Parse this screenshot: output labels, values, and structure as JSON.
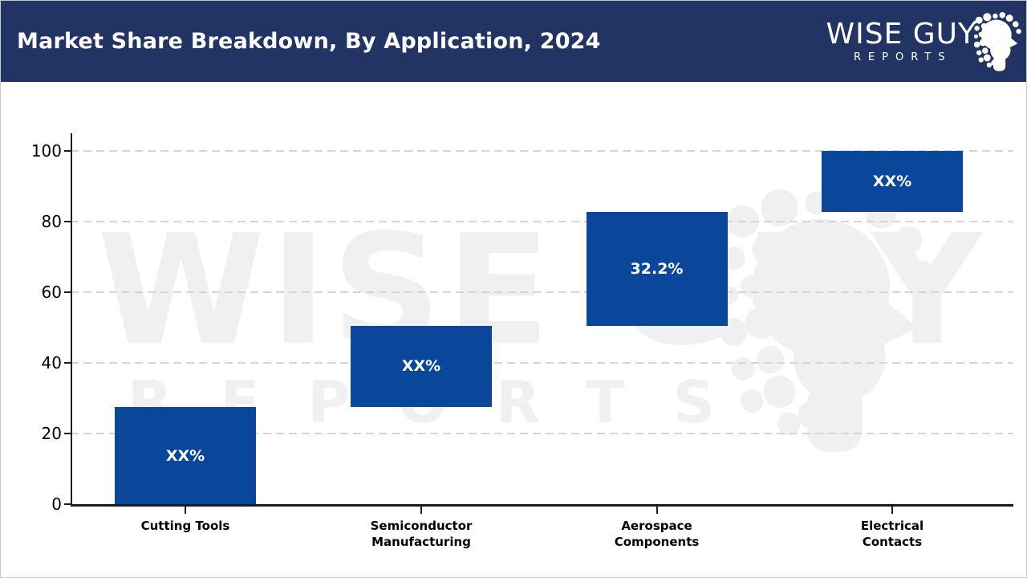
{
  "header": {
    "title": "Market Share Breakdown, By Application, 2024",
    "bg_color": "#213463",
    "brand": {
      "name": "WISE GUY",
      "subname": "REPORTS"
    }
  },
  "watermark": {
    "line1": "WISE GUY",
    "line2": "REPORTS"
  },
  "chart_data": {
    "type": "bar",
    "subtype": "waterfall",
    "title": "Market Share Breakdown, By Application, 2024",
    "categories": [
      [
        "Cutting Tools"
      ],
      [
        "Semiconductor",
        "Manufacturing"
      ],
      [
        "Aerospace",
        "Components"
      ],
      [
        "Electrical",
        "Contacts"
      ]
    ],
    "segments": [
      {
        "category": "Cutting Tools",
        "start": 0,
        "end": 27.5,
        "value_pct_est": 27.5,
        "label": "XX%"
      },
      {
        "category": "Semiconductor Manufacturing",
        "start": 27.5,
        "end": 50.5,
        "value_pct_est": 23.0,
        "label": "XX%"
      },
      {
        "category": "Aerospace Components",
        "start": 50.5,
        "end": 82.7,
        "value_pct": 32.2,
        "label": "32.2%"
      },
      {
        "category": "Electrical Contacts",
        "start": 82.7,
        "end": 100,
        "value_pct_est": 17.3,
        "label": "XX%"
      }
    ],
    "xlabel": "",
    "ylabel": "",
    "ylim": [
      0,
      100
    ],
    "yticks": [
      0,
      20,
      40,
      60,
      80,
      100
    ],
    "grid": "horizontal-dashed",
    "legend": "none",
    "bar_color": "#0A4699",
    "bar_label_color": "#ffffff",
    "axis_color": "#1c1c1c",
    "gridline_color": "#d5d5d5"
  }
}
